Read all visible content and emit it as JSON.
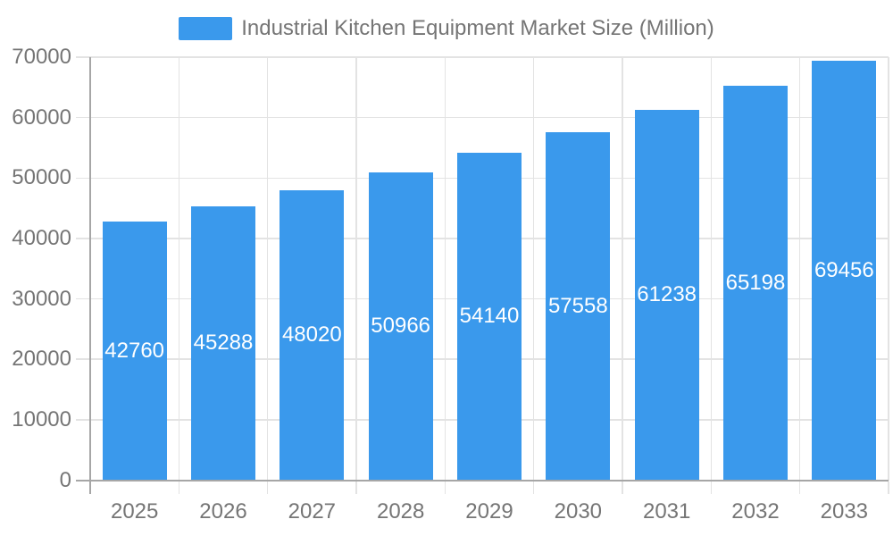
{
  "chart_data": {
    "type": "bar",
    "title": "Industrial Kitchen Equipment Market Size (Million)",
    "categories": [
      "2025",
      "2026",
      "2027",
      "2028",
      "2029",
      "2030",
      "2031",
      "2032",
      "2033"
    ],
    "series": [
      {
        "name": "Industrial Kitchen Equipment Market Size (Million)",
        "values": [
          42760,
          45288,
          48020,
          50966,
          54140,
          57558,
          61238,
          65198,
          69456
        ]
      }
    ],
    "bar_labels": [
      42760,
      45288,
      48020,
      50966,
      54140,
      57558,
      61238,
      65198,
      69456
    ],
    "xlabel": "",
    "ylabel": "",
    "ylim": [
      0,
      70000
    ],
    "ytick_step": 10000,
    "yticks": [
      0,
      10000,
      20000,
      30000,
      40000,
      50000,
      60000,
      70000
    ],
    "grid": true,
    "legend_position": "top-center",
    "value_labels_inside_bars": true,
    "colors": {
      "bar": "#3a99ec",
      "grid": "#e3e3e3",
      "axis": "#a6a6a6",
      "axis_text": "#757575",
      "legend_text": "#757575",
      "bar_label_text": "#ffffff",
      "background": "#ffffff"
    }
  }
}
